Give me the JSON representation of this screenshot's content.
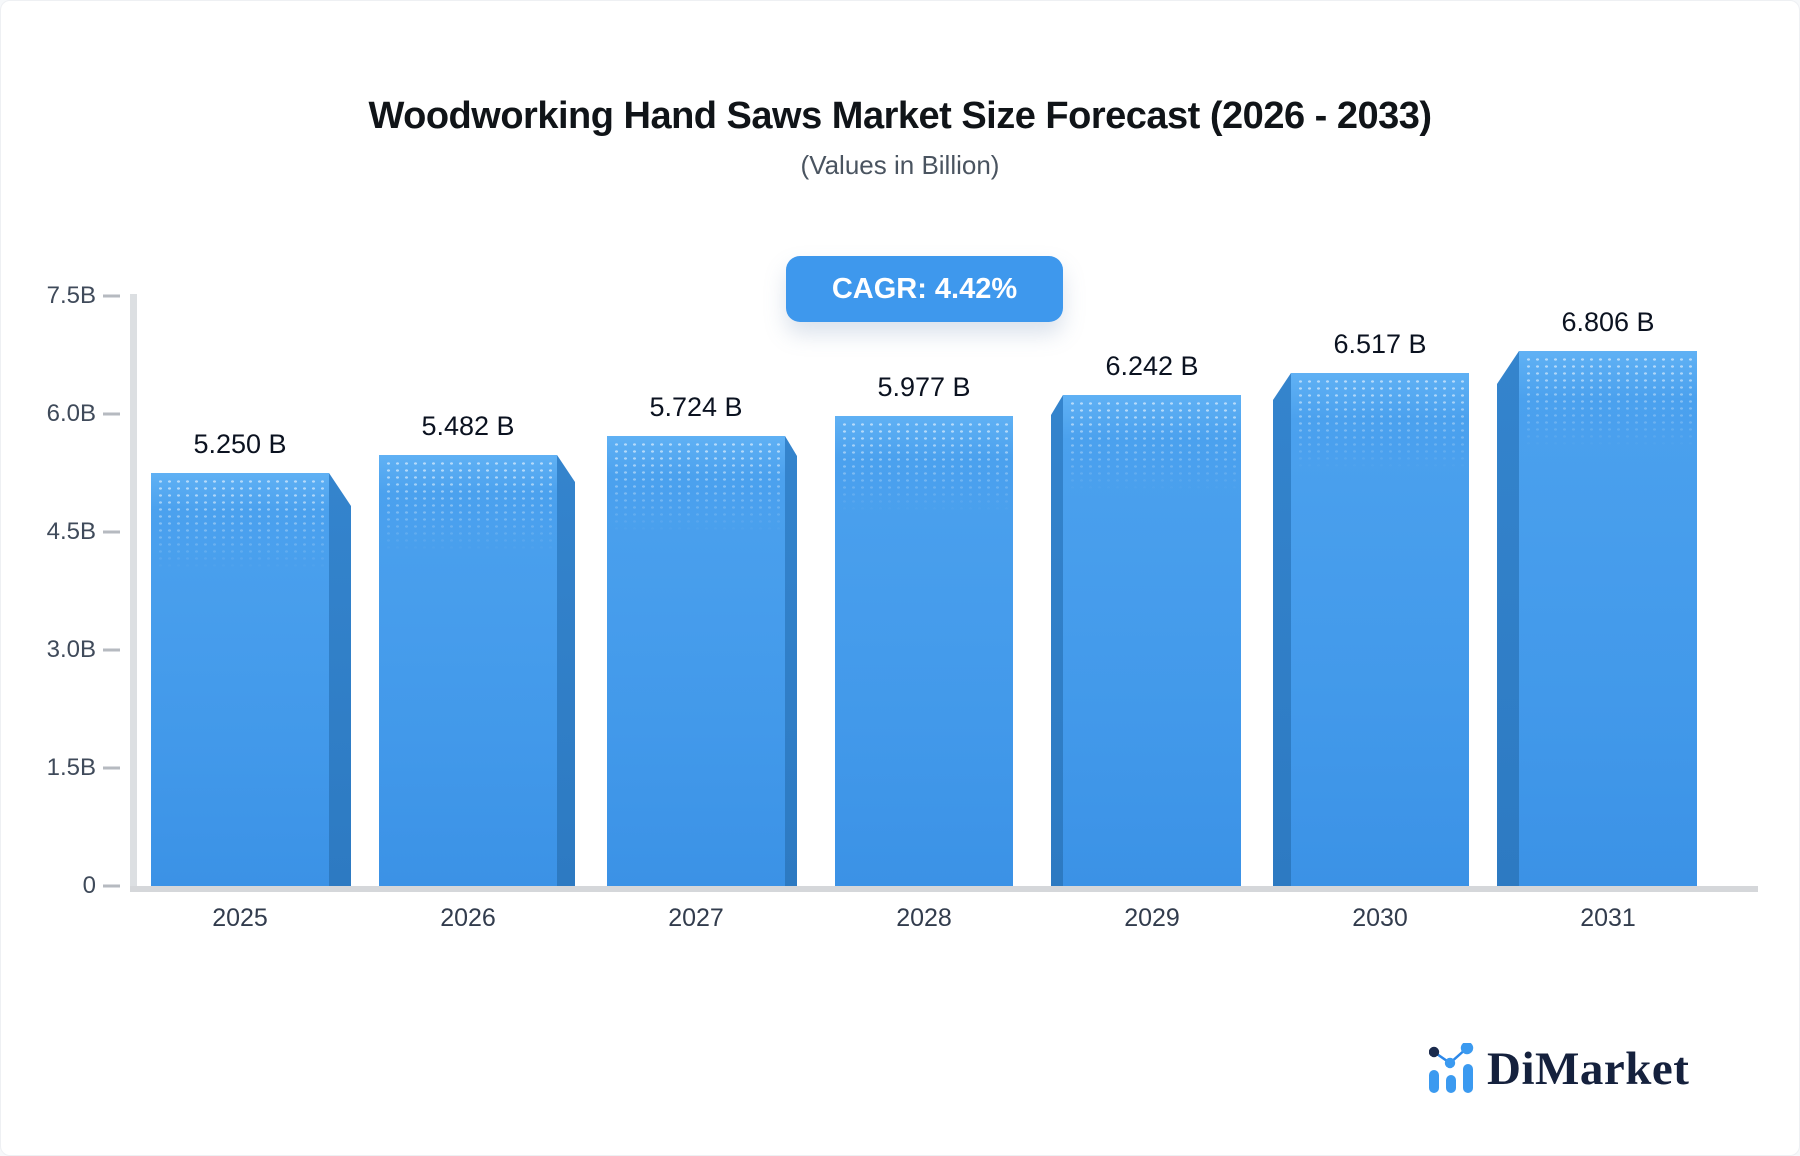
{
  "chart_data": {
    "type": "bar",
    "title": "Woodworking Hand Saws Market Size Forecast (2026 - 2033)",
    "subtitle": "(Values in Billion)",
    "cagr_label": "CAGR: 4.42%",
    "categories": [
      "2025",
      "2026",
      "2027",
      "2028",
      "2029",
      "2030",
      "2031"
    ],
    "values": [
      5.25,
      5.482,
      5.724,
      5.977,
      6.242,
      6.517,
      6.806
    ],
    "value_labels": [
      "5.250 B",
      "5.482 B",
      "5.724 B",
      "5.977 B",
      "6.242 B",
      "6.517 B",
      "6.806 B"
    ],
    "unit": "Billion",
    "ylim": [
      0,
      7.5
    ],
    "yticks": [
      {
        "label": "7.5B",
        "value": 7.5
      },
      {
        "label": "6.0B",
        "value": 6.0
      },
      {
        "label": "4.5B",
        "value": 4.5
      },
      {
        "label": "3.0B",
        "value": 3.0
      },
      {
        "label": "1.5B",
        "value": 1.5
      },
      {
        "label": "0",
        "value": 0
      }
    ],
    "grid": false,
    "legend_position": "none",
    "bar_style": "pseudo-3d, side faces angle toward center bar"
  },
  "colors": {
    "bar_face": "#4aa0ee",
    "bar_face_highlight": "#60b1f4",
    "bar_side": "#2e7cc4",
    "badge_bg": "#3e98ed",
    "badge_text": "#ffffff",
    "axis_line": "#d7d9dc",
    "tick_dash": "#b6bac0",
    "title_text": "#101418",
    "subtitle_text": "#4a5460",
    "value_label_text": "#0b1220",
    "x_tick_text": "#323c4d",
    "y_tick_text": "#3f4a5a",
    "logo_text": "#15213d",
    "logo_blue": "#3b9af0",
    "logo_navy": "#1b2b4d"
  },
  "logo": {
    "text": "DiMarket",
    "icon": "mini-bar-line-chart-icon"
  }
}
